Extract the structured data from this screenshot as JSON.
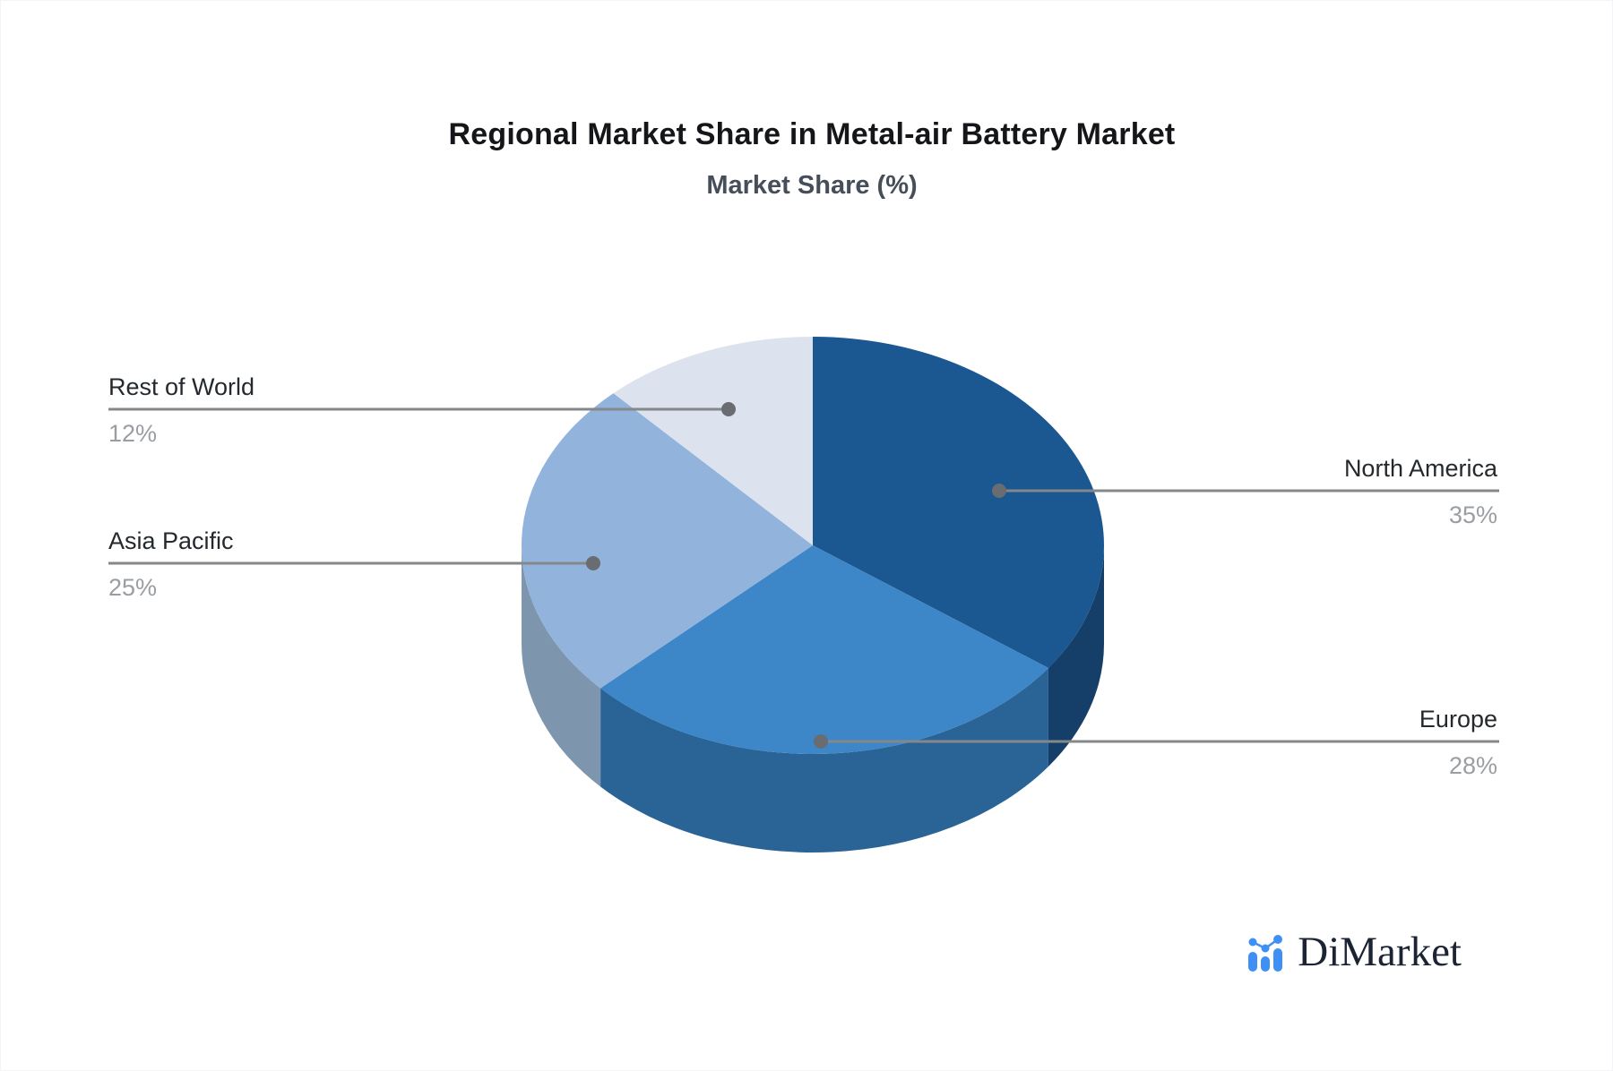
{
  "chart_data": {
    "type": "pie",
    "style": "3d",
    "title": "Regional Market Share in Metal-air Battery Market",
    "subtitle": "Market Share (%)",
    "categories": [
      "North America",
      "Europe",
      "Asia Pacific",
      "Rest of World"
    ],
    "values": [
      35,
      28,
      25,
      12
    ],
    "unit": "%",
    "percent_labels": [
      "35%",
      "28%",
      "25%",
      "12%"
    ],
    "start_angle_deg": 0,
    "direction": "clockwise",
    "legend_position": "none",
    "slice_colors": [
      "#1b5790",
      "#3d87c8",
      "#92b4dc",
      "#dce3ee"
    ],
    "slice_side_colors": [
      "#153f69",
      "#2a6496",
      "#7e96ad",
      "#b9c3d2"
    ],
    "leader_line_color": "#85878a",
    "leader_dot_color": "#696c70",
    "label_text_color": "#24292e",
    "percent_text_color": "#9a9ea3",
    "background_color": "#ffffff"
  },
  "logo": {
    "text": "DiMarket",
    "icon": "bar-chart-with-dots-logo-icon",
    "icon_color": "#3f90f5",
    "text_color": "#1c2433"
  }
}
